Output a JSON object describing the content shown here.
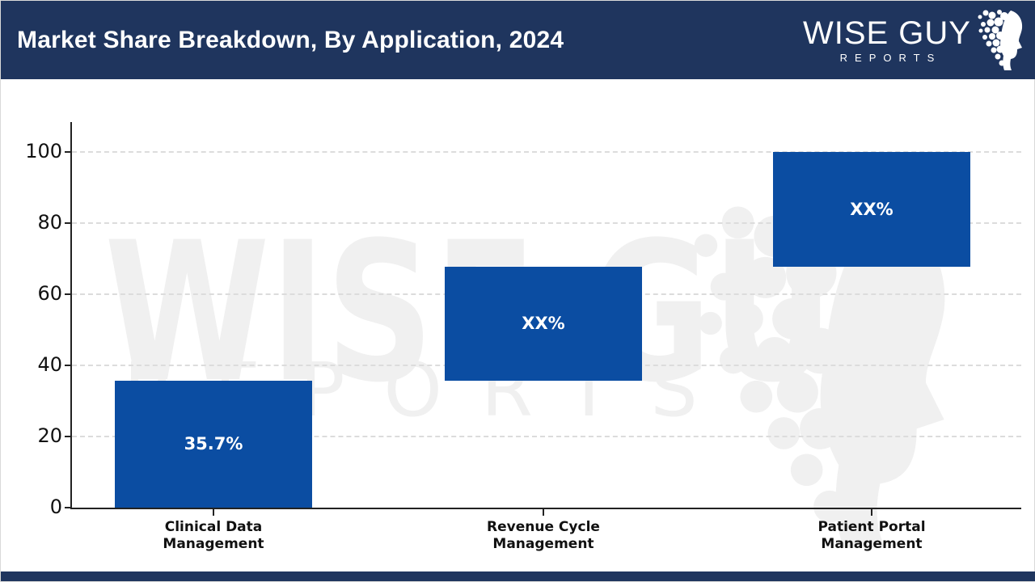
{
  "header": {
    "title": "Market Share Breakdown, By Application, 2024",
    "logo": {
      "line1": "WISE GUY",
      "line2": "REPORTS"
    }
  },
  "watermark": {
    "line1": "WISE GUY",
    "line2": "REPORTS"
  },
  "colors": {
    "header_bg": "#1f355e",
    "bar": "#0b4da2",
    "watermark": "#f0f0f0",
    "gridline": "#dcdcdc",
    "axis": "#222222",
    "bar_label": "#ffffff",
    "title_text": "#ffffff"
  },
  "chart_data": {
    "type": "bar",
    "subtype": "waterfall",
    "title": "Market Share Breakdown, By Application, 2024",
    "xlabel": "",
    "ylabel": "",
    "ylim": [
      0,
      108
    ],
    "yticks": [
      0,
      20,
      40,
      60,
      80,
      100
    ],
    "grid": "horizontal-dashed",
    "bar_color": "#0b4da2",
    "categories": [
      {
        "name": "Clinical Data Management",
        "line1": "Clinical Data",
        "line2": "Management"
      },
      {
        "name": "Revenue Cycle Management",
        "line1": "Revenue Cycle",
        "line2": "Management"
      },
      {
        "name": "Patient Portal Management",
        "line1": "Patient Portal",
        "line2": "Management"
      }
    ],
    "segments": [
      {
        "label": "35.7%",
        "start": 0,
        "end": 35.7
      },
      {
        "label": "XX%",
        "start": 35.7,
        "end": 67.8
      },
      {
        "label": "XX%",
        "start": 67.8,
        "end": 100
      }
    ]
  }
}
